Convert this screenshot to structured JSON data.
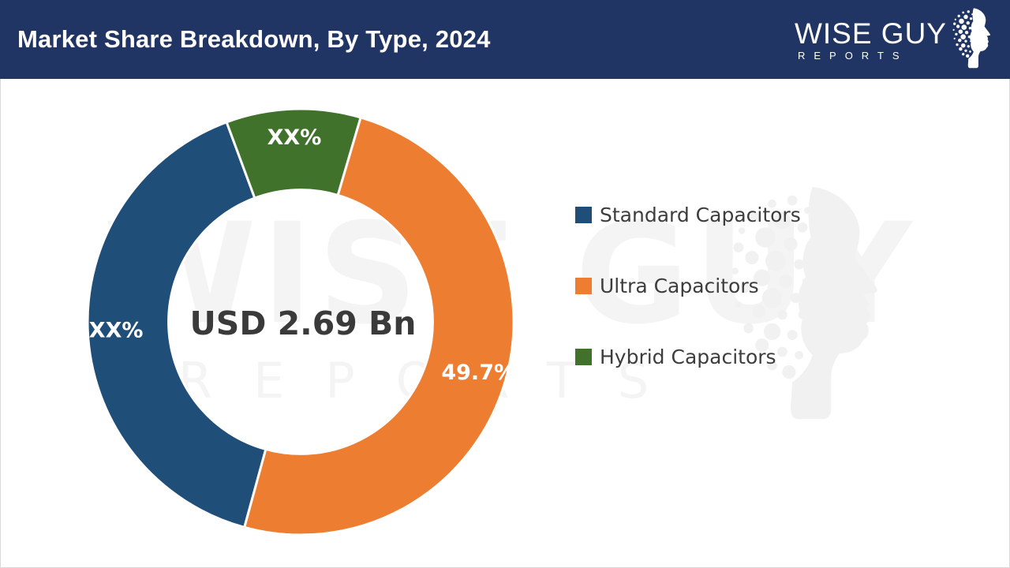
{
  "header": {
    "title": "Market Share Breakdown, By Type, 2024",
    "logo": {
      "line1": "WISE GUY",
      "line2": "REPORTS"
    }
  },
  "watermark": {
    "line1": "WISE GUY",
    "line2": "REPORTS"
  },
  "chart_data": {
    "type": "pie",
    "subtype": "donut",
    "title": "Market Share Breakdown, By Type, 2024",
    "center_label": "USD 2.69 Bn",
    "series": [
      {
        "name": "Standard Capacitors",
        "value": 40.1,
        "label": "XX%",
        "color": "#1F4E79"
      },
      {
        "name": "Ultra Capacitors",
        "value": 49.7,
        "label": "49.7%",
        "color": "#ED7D31"
      },
      {
        "name": "Hybrid Capacitors",
        "value": 10.2,
        "label": "XX%",
        "color": "#41722B"
      }
    ],
    "draw_order": [
      "Standard Capacitors",
      "Hybrid Capacitors",
      "Ultra Capacitors"
    ],
    "start_angle_deg": 195.3,
    "direction": "clockwise",
    "inner_radius_ratio": 0.62,
    "label_radius_ratio": 0.867,
    "legend_position": "right",
    "slice_gap_color": "#ffffff"
  },
  "colors": {
    "header_bg": "#213564",
    "content_border": "#d9d9d9",
    "watermark": "#f4f4f4",
    "slice_label_text": "#ffffff",
    "center_text": "#3a3a3a",
    "legend_text": "#3d3d3d"
  }
}
